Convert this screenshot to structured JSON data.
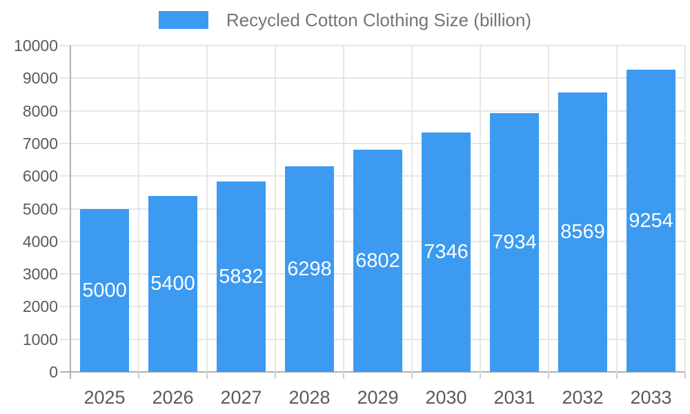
{
  "chart_data": {
    "type": "bar",
    "title": "",
    "legend": {
      "label": "Recycled Cotton Clothing Size (billion)",
      "position": "top-center"
    },
    "categories": [
      "2025",
      "2026",
      "2027",
      "2028",
      "2029",
      "2030",
      "2031",
      "2032",
      "2033"
    ],
    "series": [
      {
        "name": "Recycled Cotton Clothing Size (billion)",
        "values": [
          5000,
          5400,
          5832,
          6298,
          6802,
          7346,
          7934,
          8569,
          9254
        ]
      }
    ],
    "bar_value_labels": [
      "5000",
      "5400",
      "5832",
      "6298",
      "6802",
      "7346",
      "7934",
      "8569",
      "9254"
    ],
    "value_labels_inside_bars": true,
    "xlabel": "",
    "ylabel": "",
    "ylim": [
      0,
      10000
    ],
    "ytick_step": 1000,
    "yticks": [
      0,
      1000,
      2000,
      3000,
      4000,
      5000,
      6000,
      7000,
      8000,
      9000,
      10000
    ],
    "grid": "horizontal-and-vertical",
    "colors": {
      "bar": "#3C9AF0",
      "grid_line": "#e6e6e6",
      "axis_line": "#b0b0b0",
      "tick_mark": "#d0d0d0",
      "axis_text": "#5a5a5a",
      "legend_text": "#757575",
      "bar_label_text": "#ffffff",
      "background": "#ffffff"
    }
  }
}
